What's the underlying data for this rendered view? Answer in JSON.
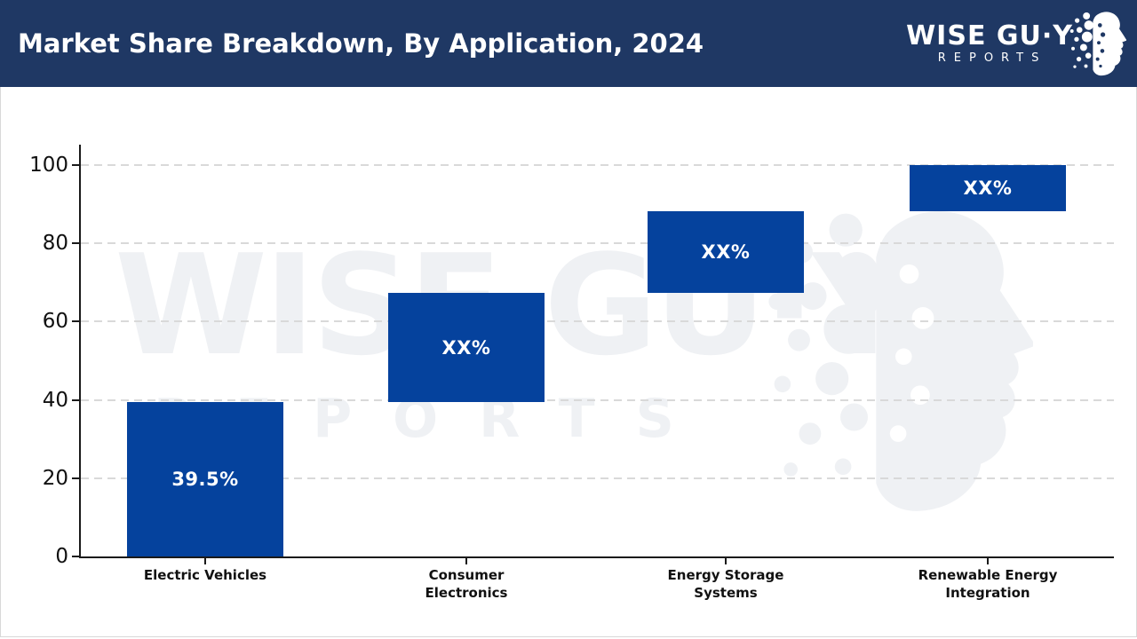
{
  "header": {
    "title": "Market Share Breakdown, By Application, 2024",
    "logo": {
      "name": "WISE GU·Y",
      "subtitle": "REPORTS"
    }
  },
  "watermark": {
    "text": "WISE GU·Y",
    "subtext": "REPORTS"
  },
  "colors": {
    "header_bg": "#1f3864",
    "bar_blue": "#05429d",
    "grid_gray": "#d9d9d9",
    "watermark_gray": "#eff1f4"
  },
  "chart_data": {
    "type": "bar",
    "variant": "waterfall",
    "title": "Market Share Breakdown, By Application, 2024",
    "categories": [
      "Electric Vehicles",
      "Consumer Electronics",
      "Energy Storage Systems",
      "Renewable Energy Integration"
    ],
    "category_lines": [
      [
        "Electric Vehicles"
      ],
      [
        "Consumer",
        "Electronics"
      ],
      [
        "Energy Storage",
        "Systems"
      ],
      [
        "Renewable Energy",
        "Integration"
      ]
    ],
    "segments": [
      {
        "category": "Electric Vehicles",
        "start": 0,
        "end": 39.5,
        "value_label": "39.5%"
      },
      {
        "category": "Consumer Electronics",
        "start": 39.5,
        "end": 67.3,
        "value_label": "XX%"
      },
      {
        "category": "Energy Storage Systems",
        "start": 67.3,
        "end": 88.2,
        "value_label": "XX%"
      },
      {
        "category": "Renewable Energy Integration",
        "start": 88.2,
        "end": 100,
        "value_label": "XX%"
      }
    ],
    "y_ticks": [
      0,
      20,
      40,
      60,
      80,
      100
    ],
    "ylim": [
      0,
      105
    ],
    "xlabel": "",
    "ylabel": "",
    "grid": true,
    "legend": false,
    "bar_color": "#05429d",
    "bar_label_color": "#ffffff"
  }
}
